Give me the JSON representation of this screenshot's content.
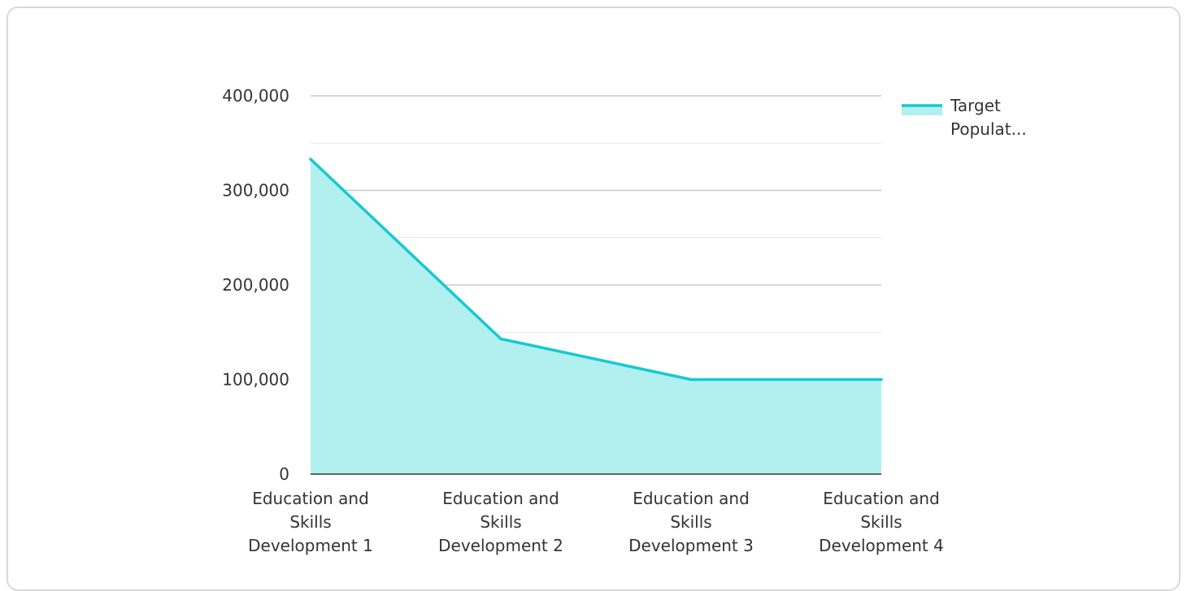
{
  "chart_data": {
    "type": "area",
    "categories": [
      [
        "Education and",
        "Skills",
        "Development 1"
      ],
      [
        "Education and",
        "Skills",
        "Development 2"
      ],
      [
        "Education and",
        "Skills",
        "Development 3"
      ],
      [
        "Education and",
        "Skills",
        "Development 4"
      ]
    ],
    "series": [
      {
        "name": "Target Populat...",
        "legend_lines": [
          "Target",
          "Populat..."
        ],
        "values": [
          333000,
          143000,
          100000,
          100000
        ],
        "line_color": "#17c9cf",
        "fill_color": "#b2efef"
      }
    ],
    "y_ticks": [
      {
        "value": 0,
        "label": "0"
      },
      {
        "value": 100000,
        "label": "100,000"
      },
      {
        "value": 200000,
        "label": "200,000"
      },
      {
        "value": 300000,
        "label": "300,000"
      },
      {
        "value": 400000,
        "label": "400,000"
      }
    ],
    "ylim": [
      0,
      400000
    ],
    "minor_grid_step": 50000,
    "grid": true,
    "legend_position": "top-right"
  }
}
